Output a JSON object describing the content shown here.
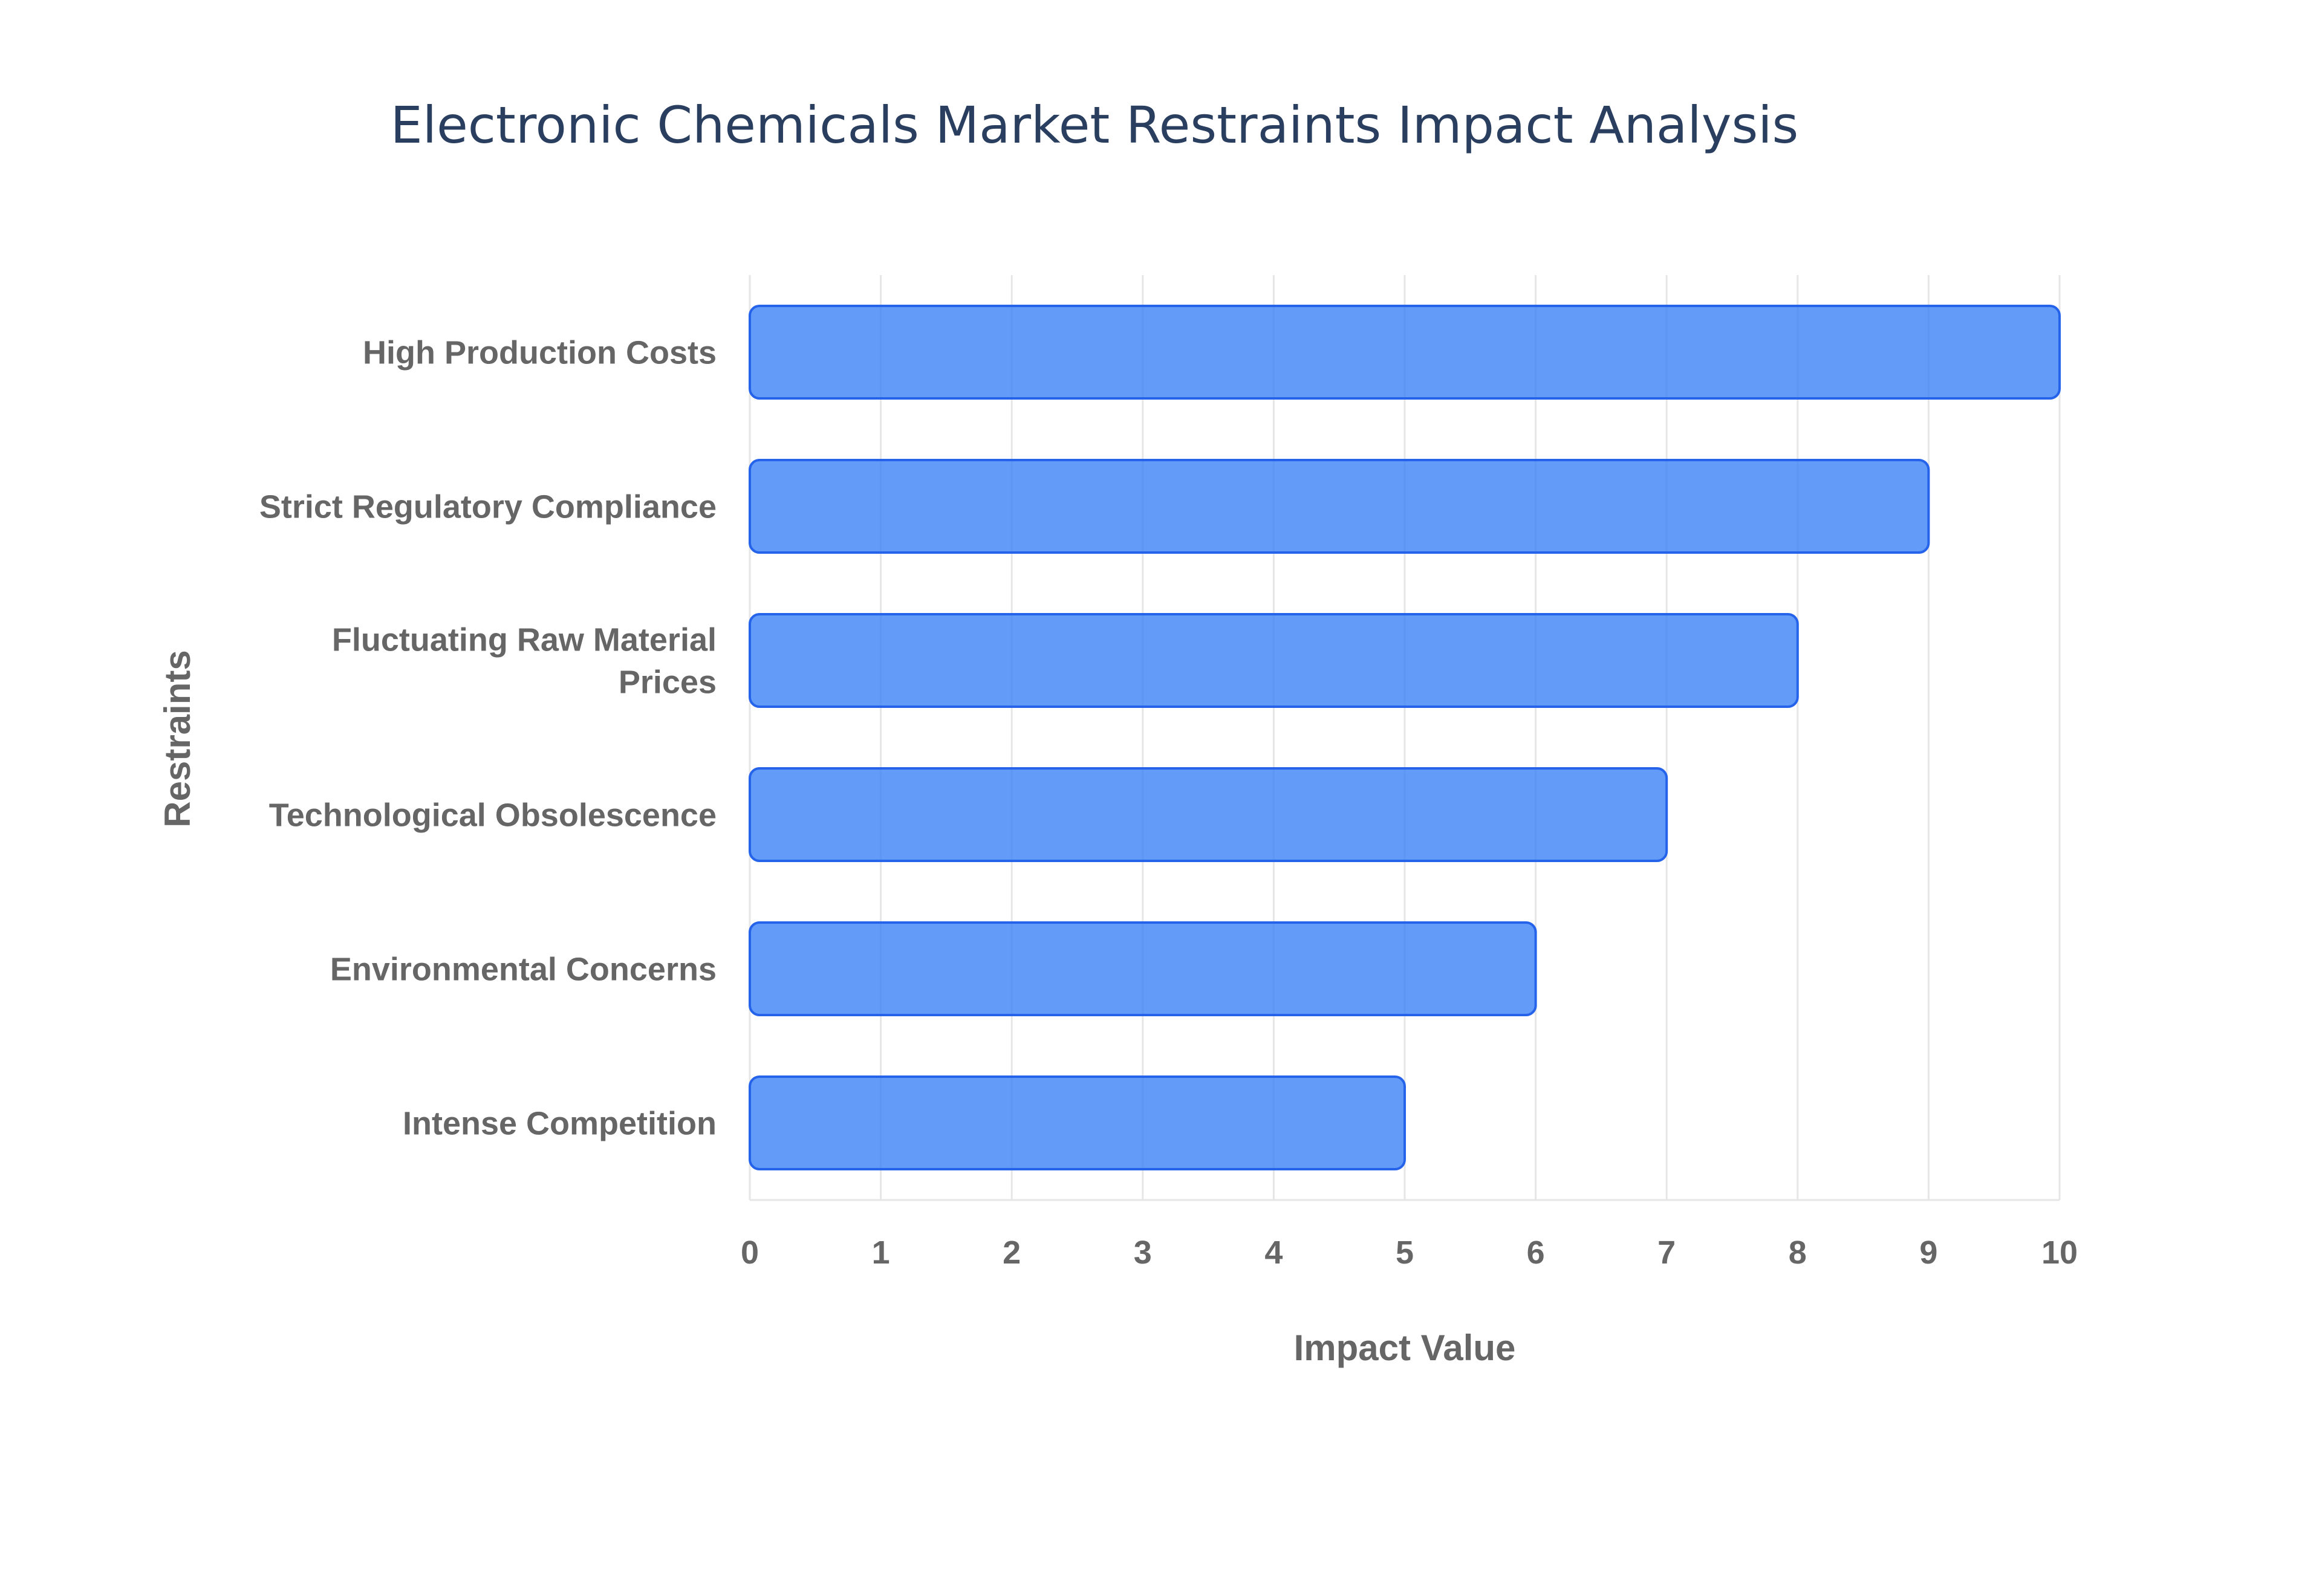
{
  "chart_data": {
    "type": "bar",
    "orientation": "horizontal",
    "title": "Electronic Chemicals Market Restraints Impact Analysis",
    "xlabel": "Impact Value",
    "ylabel": "Restraints",
    "categories": [
      "High Production Costs",
      "Strict Regulatory Compliance",
      "Fluctuating Raw Material Prices",
      "Technological Obsolescence",
      "Environmental Concerns",
      "Intense Competition"
    ],
    "values": [
      10,
      9,
      8,
      7,
      6,
      5
    ],
    "xlim": [
      0,
      10
    ],
    "x_ticks": [
      "0",
      "1",
      "2",
      "3",
      "4",
      "5",
      "6",
      "7",
      "8",
      "9",
      "10"
    ],
    "grid": true,
    "bar_color": "#3b82f6",
    "bar_border_color": "#2563eb",
    "title_color": "#2a3f5f",
    "label_color": "#666666",
    "grid_color": "#e6e6e6"
  }
}
